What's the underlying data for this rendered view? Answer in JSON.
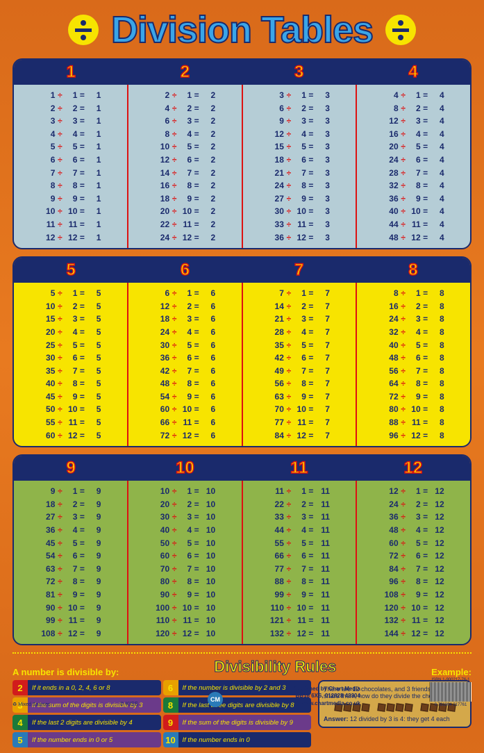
{
  "title": "Division Tables",
  "blocks": [
    {
      "class": "b1",
      "start": 1,
      "bg": "#b5cdd6"
    },
    {
      "class": "b2",
      "start": 5,
      "bg": "#f7e400"
    },
    {
      "class": "b3",
      "start": 9,
      "bg": "#8fb44a"
    }
  ],
  "max_multiplier": 12,
  "colors": {
    "header_bg": "#1a2a6c",
    "header_text": "#f7d400",
    "number_text": "#1a2a6c",
    "operator": "#d11",
    "divider": "#d11",
    "poster_bg": "#e87a20",
    "accent": "#f7e400"
  },
  "divisibility": {
    "heading": "Divisibility Rules",
    "subheading": "A number is divisible by:",
    "example_label": "Example:",
    "rules": [
      {
        "n": "2",
        "num_bg": "#d11c1c",
        "txt_bg": "#1a2a6c",
        "txt": "If it ends in a 0, 2, 4, 6 or 8"
      },
      {
        "n": "6",
        "num_bg": "#e8a000",
        "txt_bg": "#1a2a6c",
        "txt": "If the number is divisible by 2 and 3"
      },
      {
        "n": "3",
        "num_bg": "#e8a000",
        "txt_bg": "#6b3a8a",
        "txt": "If the sum of the digits is divisible by 3"
      },
      {
        "n": "8",
        "num_bg": "#1a7a3a",
        "txt_bg": "#1a2a6c",
        "txt": "If the last three digits are divisible by 8"
      },
      {
        "n": "4",
        "num_bg": "#1a7a3a",
        "txt_bg": "#1a2a6c",
        "txt": "If the last 2 digits are divisible by 4"
      },
      {
        "n": "9",
        "num_bg": "#d11c1c",
        "txt_bg": "#6b3a8a",
        "txt": "If the sum of the digits is divisible by 9"
      },
      {
        "n": "5",
        "num_bg": "#2a7ab8",
        "txt_bg": "#6b3a8a",
        "txt": "If the number ends in 0 or 5"
      },
      {
        "n": "10",
        "num_bg": "#2a7ab8",
        "txt_bg": "#1a2a6c",
        "txt": "If the number ends in 0"
      }
    ],
    "example": {
      "q": "There are 12 chocolates, and 3 friends want to share them, how do they divide the chocolates?",
      "a_prefix": "Answer: ",
      "a": "12 divided by 3 is 4: they get 4 each"
    }
  },
  "footer": {
    "kiss": "© KISS",
    "mixed": "Mixed Sources",
    "publisher": "Published by Chart Media",
    "addr": "BB18 6XS, 012828 43304",
    "url": "www.chartmedia.co.uk",
    "isbn": "ISBN 1-900217-76-1",
    "barcode_num": "9 781904 217761"
  }
}
